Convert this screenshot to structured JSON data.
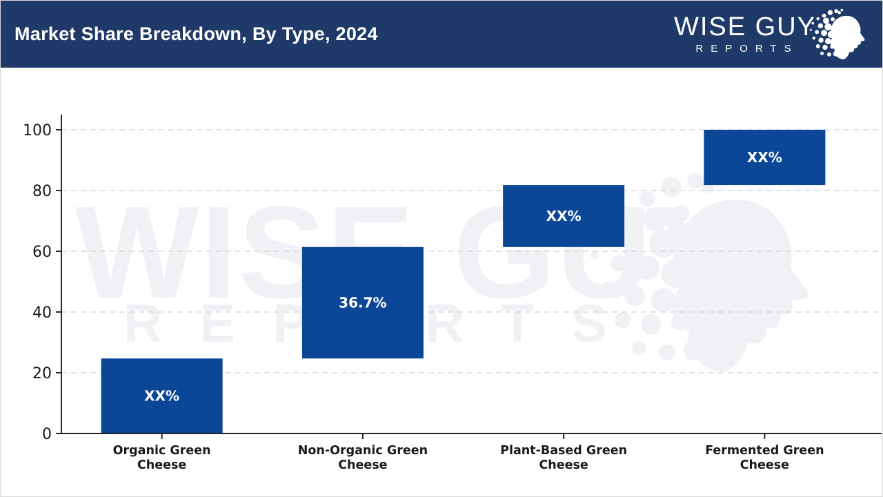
{
  "header": {
    "title": "Market Share Breakdown, By Type, 2024",
    "logo": {
      "line1": "WISE GUY",
      "line2": "REPORTS"
    }
  },
  "watermark": {
    "line1": "WISE GUY",
    "line2": "REPORTS"
  },
  "chart_data": {
    "type": "bar",
    "subtype": "floating-waterfall-bars",
    "title": "Market Share Breakdown, By Type, 2024",
    "categories": [
      "Organic Green Cheese",
      "Non-Organic Green Cheese",
      "Plant-Based Green Cheese",
      "Fermented Green Cheese"
    ],
    "bars": [
      {
        "category": "Organic Green Cheese",
        "start": 0,
        "end": 24.7,
        "label": "XX%"
      },
      {
        "category": "Non-Organic Green Cheese",
        "start": 24.7,
        "end": 61.4,
        "label": "36.7%"
      },
      {
        "category": "Plant-Based Green Cheese",
        "start": 61.4,
        "end": 81.8,
        "label": "XX%"
      },
      {
        "category": "Fermented Green Cheese",
        "start": 81.8,
        "end": 100,
        "label": "XX%"
      }
    ],
    "yticks": [
      0,
      20,
      40,
      60,
      80,
      100
    ],
    "ylim": [
      0,
      105
    ],
    "xlabel": "",
    "ylabel": "",
    "grid": "horizontal-dashed",
    "legend": "none"
  },
  "colors": {
    "header_bg": "#1f3a68",
    "bar_fill": "#0b4697",
    "bar_label": "#ffffff",
    "watermark": "#f0f1f4",
    "axis": "#262626",
    "tick_label": "#1a1a1a",
    "gridline": "#d8d8d8"
  }
}
